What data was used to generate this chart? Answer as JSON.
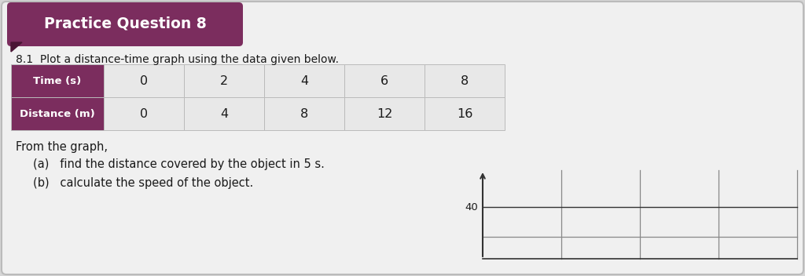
{
  "title": "Practice Question 8",
  "subtitle": "8.1  Plot a distance-time graph using the data given below.",
  "time_values": [
    "0",
    "2",
    "4",
    "6",
    "8"
  ],
  "distance_values": [
    "0",
    "4",
    "8",
    "12",
    "16"
  ],
  "questions_line0": "From the graph,",
  "questions_line1": "(a)   find the distance covered by the object in 5 s.",
  "questions_line2": "(b)   calculate the speed of the object.",
  "graph_y_label": "40",
  "header_bg": "#7B2D5E",
  "header_text": "#ffffff",
  "border_color": "#bbbbbb",
  "page_bg": "#d6d6d6",
  "card_bg": "#f0f0f0",
  "card_edge": "#bbbbbb",
  "title_banner_bg": "#7B2D5E",
  "graph_line_color": "#333333",
  "graph_grid_color": "#888888"
}
